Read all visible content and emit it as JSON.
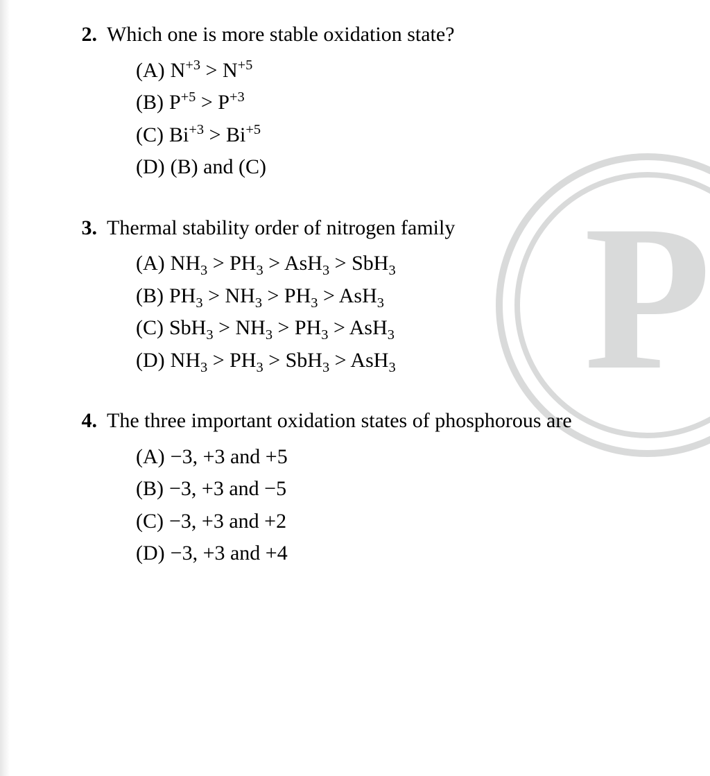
{
  "page": {
    "background_color": "#ffffff",
    "text_color": "#000000",
    "font_family": "Times New Roman",
    "q_num_fontsize": 30,
    "q_text_fontsize": 30,
    "option_fontsize": 30
  },
  "watermark": {
    "letter": "P",
    "fill_color": "#565a5d",
    "ring_color": "#565a5d",
    "opacity": 0.22
  },
  "questions": [
    {
      "number": "2.",
      "text": "Which one is more stable oxidation state?",
      "options": [
        {
          "label": "(A)",
          "html": "N<sup>+3</sup> &gt; N<sup>+5</sup>"
        },
        {
          "label": "(B)",
          "html": "P<sup>+5</sup> &gt; P<sup>+3</sup>"
        },
        {
          "label": "(C)",
          "html": "Bi<sup>+3</sup> &gt; Bi<sup>+5</sup>"
        },
        {
          "label": "(D)",
          "html": "(B) and (C)"
        }
      ]
    },
    {
      "number": "3.",
      "text": "Thermal stability order of nitrogen family",
      "options": [
        {
          "label": "(A)",
          "html": "NH<sub>3</sub> &gt; PH<sub>3</sub> &gt; AsH<sub>3</sub> &gt; SbH<sub>3</sub>"
        },
        {
          "label": "(B)",
          "html": "PH<sub>3</sub> &gt; NH<sub>3</sub> &gt; PH<sub>3</sub> &gt; AsH<sub>3</sub>"
        },
        {
          "label": "(C)",
          "html": "SbH<sub>3</sub> &gt; NH<sub>3</sub> &gt; PH<sub>3</sub> &gt; AsH<sub>3</sub>"
        },
        {
          "label": "(D)",
          "html": "NH<sub>3</sub> &gt; PH<sub>3</sub> &gt; SbH<sub>3</sub> &gt; AsH<sub>3</sub>"
        }
      ]
    },
    {
      "number": "4.",
      "text": "The three important oxidation states of phosphorous are",
      "options": [
        {
          "label": "(A)",
          "html": "&minus;3, +3 and +5"
        },
        {
          "label": "(B)",
          "html": "&minus;3, +3 and &minus;5"
        },
        {
          "label": "(C)",
          "html": "&minus;3, +3 and +2"
        },
        {
          "label": "(D)",
          "html": "&minus;3, +3 and +4"
        }
      ]
    }
  ]
}
